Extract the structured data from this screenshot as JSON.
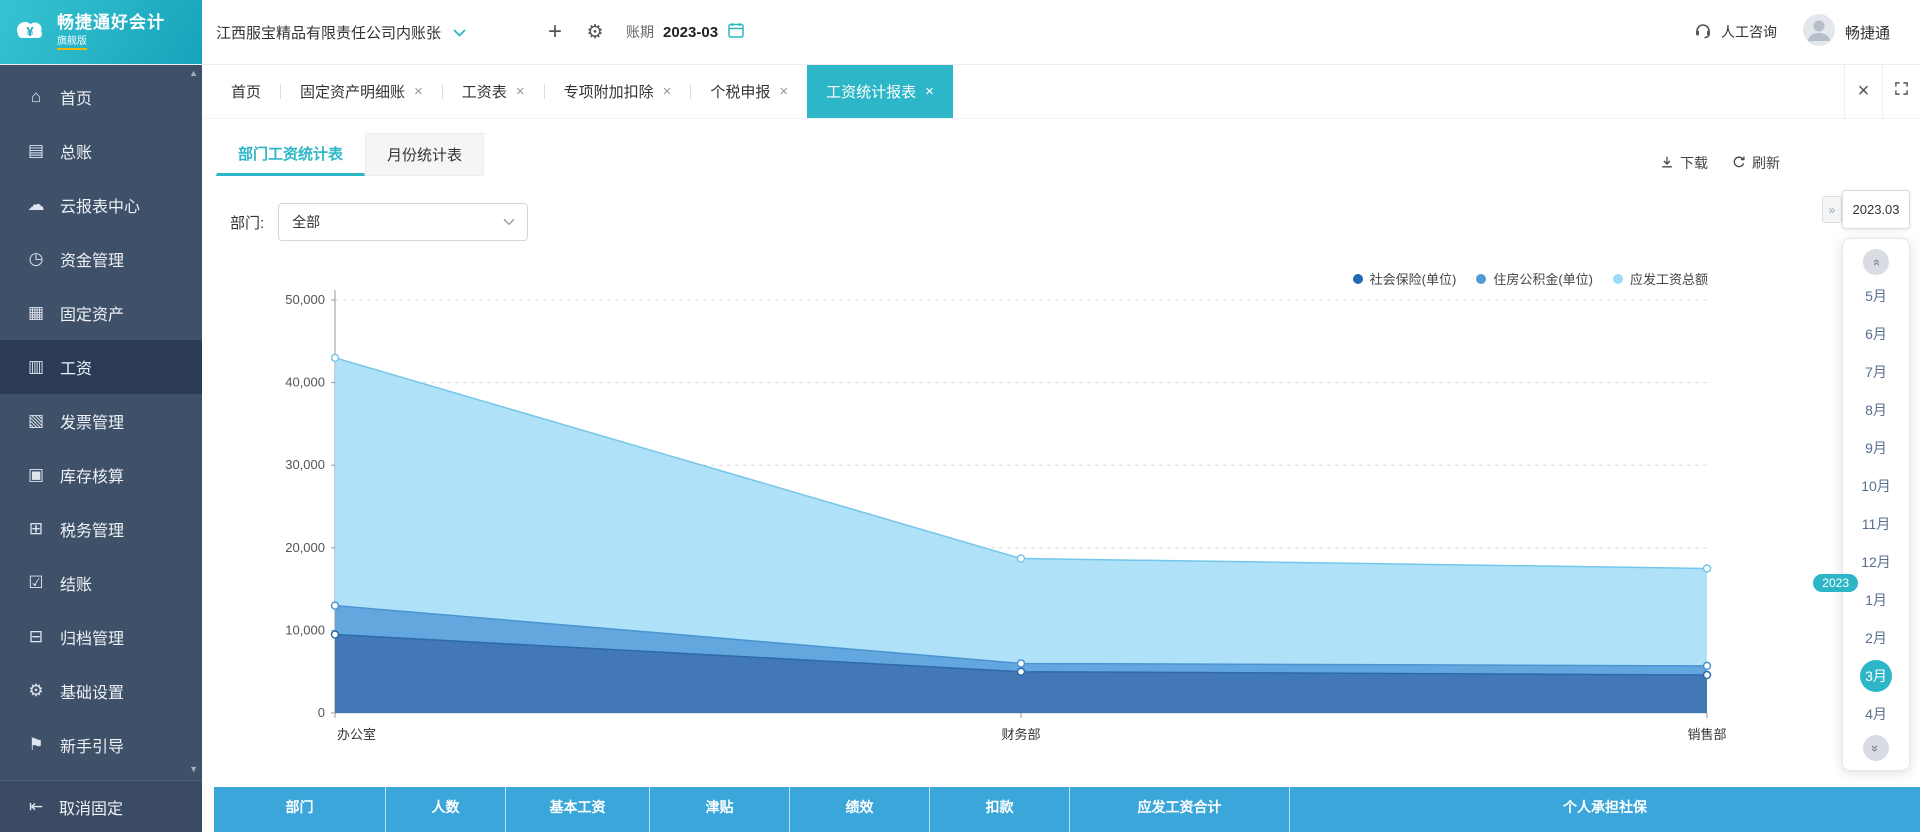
{
  "brand": {
    "app_name": "畅捷通好会计",
    "edition": "旗舰版",
    "accent_color": "#2db6c8"
  },
  "topbar": {
    "company": "江西服宝精品有限责任公司内账张",
    "period_label": "账期",
    "period_value": "2023-03",
    "help_label": "人工咨询",
    "user_name": "畅捷通"
  },
  "tabs": {
    "close_all": "×",
    "items": [
      {
        "label": "首页",
        "closable": false,
        "active": false
      },
      {
        "label": "固定资产明细账",
        "closable": true,
        "active": false
      },
      {
        "label": "工资表",
        "closable": true,
        "active": false
      },
      {
        "label": "专项附加扣除",
        "closable": true,
        "active": false
      },
      {
        "label": "个税申报",
        "closable": true,
        "active": false
      },
      {
        "label": "工资统计报表",
        "closable": true,
        "active": true
      }
    ]
  },
  "sidebar": {
    "pin_label": "取消固定",
    "items": [
      {
        "label": "首页",
        "icon": "home",
        "active": false
      },
      {
        "label": "总账",
        "icon": "ledger",
        "active": false
      },
      {
        "label": "云报表中心",
        "icon": "cloud",
        "active": false
      },
      {
        "label": "资金管理",
        "icon": "funds",
        "active": false
      },
      {
        "label": "固定资产",
        "icon": "fixed",
        "active": false
      },
      {
        "label": "工资",
        "icon": "salary",
        "active": true
      },
      {
        "label": "发票管理",
        "icon": "invoice",
        "active": false
      },
      {
        "label": "库存核算",
        "icon": "inventory",
        "active": false
      },
      {
        "label": "税务管理",
        "icon": "tax",
        "active": false
      },
      {
        "label": "结账",
        "icon": "closing",
        "active": false
      },
      {
        "label": "归档管理",
        "icon": "archive",
        "active": false
      },
      {
        "label": "基础设置",
        "icon": "settings",
        "active": false
      },
      {
        "label": "新手引导",
        "icon": "guide",
        "active": false
      }
    ]
  },
  "report": {
    "subtabs": [
      {
        "label": "部门工资统计表",
        "active": true
      },
      {
        "label": "月份统计表",
        "active": false
      }
    ],
    "download_label": "下载",
    "refresh_label": "刷新",
    "dept_filter_label": "部门:",
    "dept_filter_value": "全部"
  },
  "chart_data": {
    "type": "area",
    "title": "",
    "categories": [
      "办公室",
      "财务部",
      "销售部"
    ],
    "series": [
      {
        "name": "社会保险(单位)",
        "values": [
          9500,
          5000,
          4600
        ],
        "fill": "#3e74b1",
        "stroke": "#2e6aa8",
        "legend_color": "#1e6ab4"
      },
      {
        "name": "住房公积金(单位)",
        "values": [
          13000,
          6000,
          5700
        ],
        "fill": "#5da4dd",
        "stroke": "#4b94d2",
        "legend_color": "#4f9ad8"
      },
      {
        "name": "应发工资总额",
        "values": [
          43000,
          18700,
          17500
        ],
        "fill": "#a9e0f8",
        "stroke": "#74c7ea",
        "legend_color": "#9bdcf7"
      }
    ],
    "ylim": [
      0,
      50000
    ],
    "ytick_step": 10000,
    "grid": "horizontal-dashed",
    "legend_position": "top-right"
  },
  "table": {
    "headers": [
      "部门",
      "人数",
      "基本工资",
      "津贴",
      "绩效",
      "扣款",
      "应发工资合计",
      "个人承担社保"
    ]
  },
  "month_panel": {
    "current": "2023.03",
    "year_badge": "2023",
    "months": [
      "5月",
      "6月",
      "7月",
      "8月",
      "9月",
      "10月",
      "11月",
      "12月",
      "1月",
      "2月",
      "3月",
      "4月"
    ],
    "active_month": "3月"
  }
}
